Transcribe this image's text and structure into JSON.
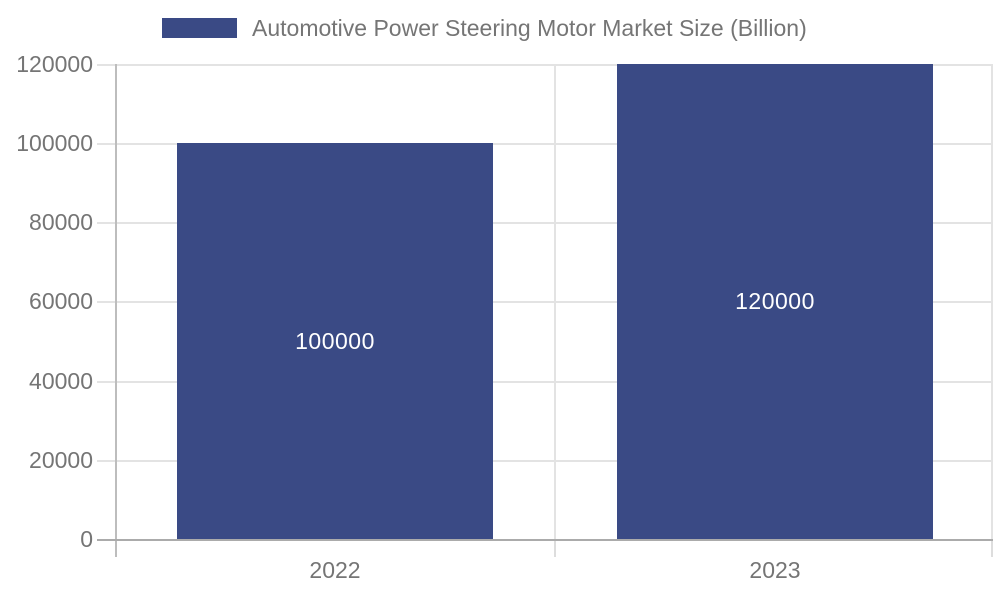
{
  "chart_data": {
    "type": "bar",
    "title": "Automotive Power Steering Motor Market Size (Billion)",
    "categories": [
      "2022",
      "2023"
    ],
    "values": [
      100000,
      120000
    ],
    "series": [
      {
        "name": "Automotive Power Steering Motor Market Size (Billion)",
        "values": [
          100000,
          120000
        ]
      }
    ],
    "data_labels": [
      "100000",
      "120000"
    ],
    "xlabel": "",
    "ylabel": "",
    "ylim": [
      0,
      120000
    ],
    "ytick_interval": 20000,
    "yticks": [
      0,
      20000,
      40000,
      60000,
      80000,
      100000,
      120000
    ],
    "grid": true,
    "legend_position": "top-center"
  },
  "legend": {
    "label": "Automotive Power Steering Motor Market Size (Billion)",
    "swatch_color": "#3A4A85"
  },
  "y_axis": {
    "ticks": [
      "120000",
      "100000",
      "80000",
      "60000",
      "40000",
      "20000",
      "0"
    ]
  },
  "x_axis": {
    "labels": [
      "2022",
      "2023"
    ]
  },
  "bars": [
    {
      "category": "2022",
      "value_label": "100000"
    },
    {
      "category": "2023",
      "value_label": "120000"
    }
  ],
  "colors": {
    "bar": "#3A4A85",
    "axis_text": "#757575",
    "grid_line": "#e3e3e3",
    "axis_line": "#ababab",
    "value_label": "#ffffff"
  }
}
